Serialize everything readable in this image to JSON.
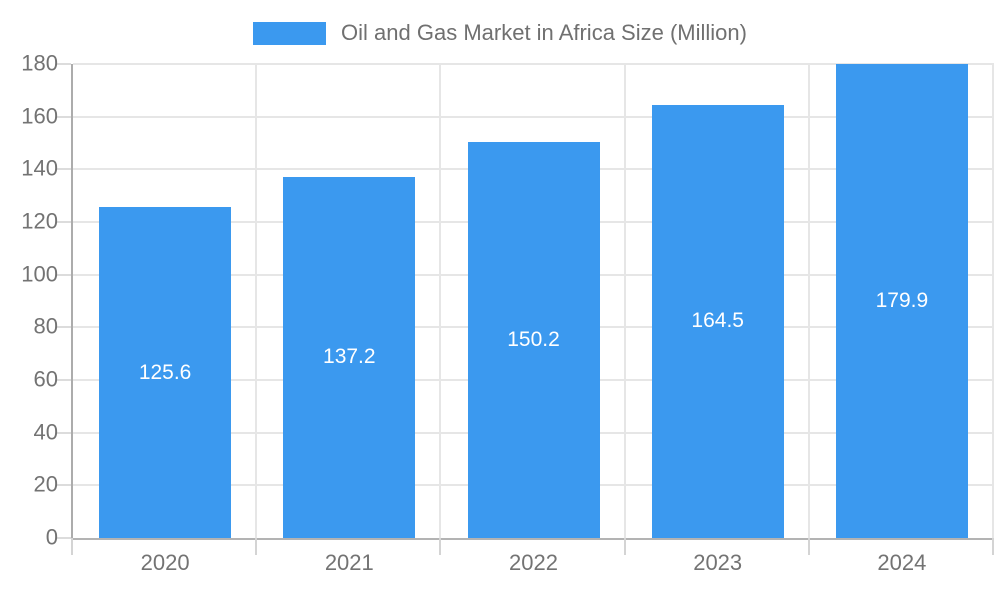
{
  "chart_data": {
    "type": "bar",
    "title": "Oil and Gas Market in Africa Size (Million)",
    "legend_position": "top",
    "categories": [
      "2020",
      "2021",
      "2022",
      "2023",
      "2024"
    ],
    "values": [
      125.6,
      137.2,
      150.2,
      164.5,
      179.9
    ],
    "value_labels": [
      "125.6",
      "137.2",
      "150.2",
      "164.5",
      "179.9"
    ],
    "xlabel": "",
    "ylabel": "",
    "ylim": [
      0,
      180
    ],
    "ytick_step": 20,
    "yticks": [
      0,
      20,
      40,
      60,
      80,
      100,
      120,
      140,
      160,
      180
    ],
    "grid": true,
    "colors": {
      "bar": "#3b99ef",
      "value_label": "#ffffff",
      "gridline": "#e6e6e6",
      "axis_line": "#b0b0b0",
      "tick_label": "#737373",
      "legend_text": "#707070",
      "background": "#ffffff"
    }
  }
}
